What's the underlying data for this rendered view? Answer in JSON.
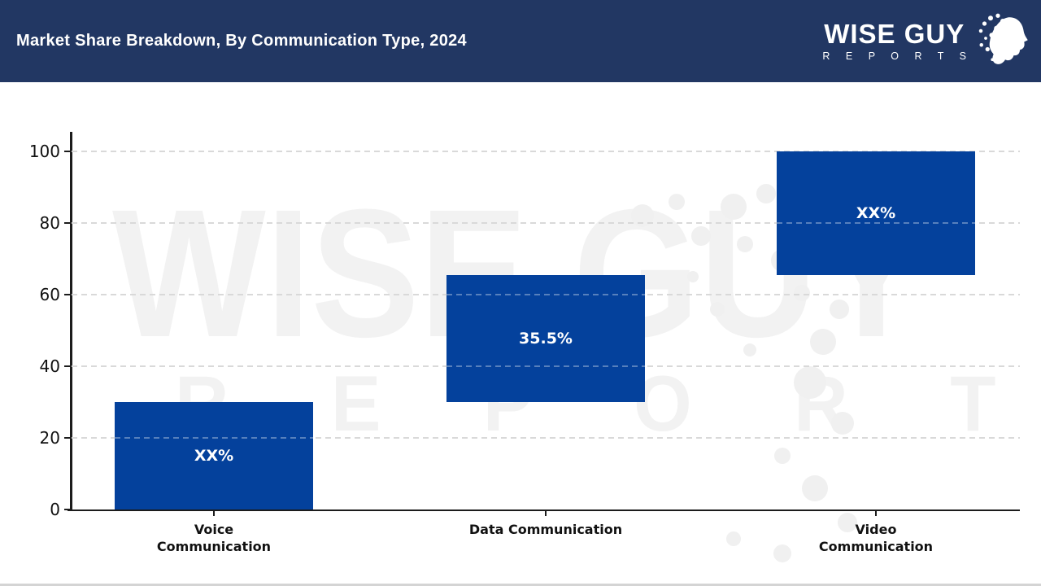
{
  "header": {
    "title": "Market Share Breakdown, By Communication Type, 2024",
    "background_color": "#223763",
    "logo": {
      "line1": "WISE GUY",
      "line2": "R E P O R T S"
    }
  },
  "watermark": {
    "line1": "WISE GUY",
    "line2": "R E P O R T S"
  },
  "chart_data": {
    "type": "bar",
    "subtype": "floating-segment-waterfall",
    "title": "Market Share Breakdown, By Communication Type, 2024",
    "categories": [
      "Voice Communication",
      "Data Communication",
      "Video Communication"
    ],
    "category_label_lines": [
      [
        "Voice",
        "Communication"
      ],
      [
        "Data Communication"
      ],
      [
        "Video",
        "Communication"
      ]
    ],
    "bars": [
      {
        "category": "Voice Communication",
        "start": 0,
        "end": 30,
        "label": "XX%"
      },
      {
        "category": "Data Communication",
        "start": 30,
        "end": 65.5,
        "label": "35.5%"
      },
      {
        "category": "Video Communication",
        "start": 65.5,
        "end": 100,
        "label": "XX%"
      }
    ],
    "ylim": [
      0,
      100
    ],
    "yticks": [
      0,
      20,
      40,
      60,
      80,
      100
    ],
    "grid_values": [
      20,
      40,
      60,
      80,
      100
    ],
    "grid_style": "dashed",
    "grid_color": "#d9d9d9",
    "bar_color": "#04419c",
    "bar_label_color": "#ffffff",
    "axis_color": "#1c1c1c",
    "legend": "none",
    "xlabel": "",
    "ylabel": ""
  }
}
